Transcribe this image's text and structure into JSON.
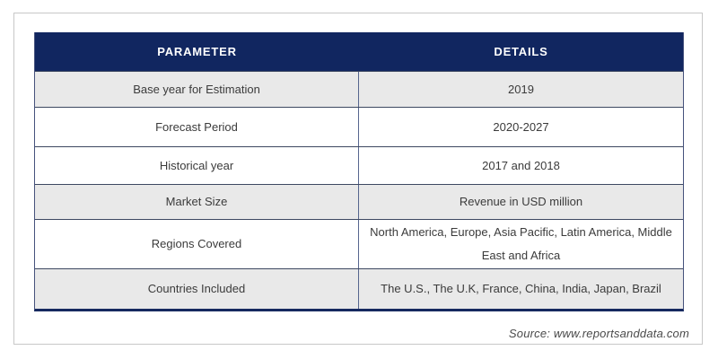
{
  "chart_data": {
    "type": "table",
    "columns": [
      "PARAMETER",
      "DETAILS"
    ],
    "rows": [
      [
        "Base year for Estimation",
        "2019"
      ],
      [
        "Forecast Period",
        "2020-2027"
      ],
      [
        "Historical year",
        "2017 and 2018"
      ],
      [
        "Market Size",
        "Revenue in USD million"
      ],
      [
        "Regions Covered",
        "North America, Europe, Asia Pacific, Latin America, Middle East and Africa"
      ],
      [
        "Countries Included",
        "The U.S., The  U.K, France, China, India, Japan, Brazil"
      ]
    ],
    "layout_hints": {
      "header_position": "top",
      "shaded_row_indices": [
        0,
        3,
        5
      ],
      "grid": true
    }
  },
  "footer": {
    "source": "Source: www.reportsanddata.com"
  },
  "colors": {
    "header_bg": "#112660",
    "header_text": "#ffffff",
    "row_shade_bg": "#e9e9e9",
    "row_white_bg": "#ffffff",
    "row_border": "#3d4861",
    "column_divider": "#56658e",
    "table_bottom_border": "#16295f",
    "frame_border": "#c8c8c8",
    "cell_text": "#3b3b3b",
    "source_text": "#4a4a4a"
  }
}
